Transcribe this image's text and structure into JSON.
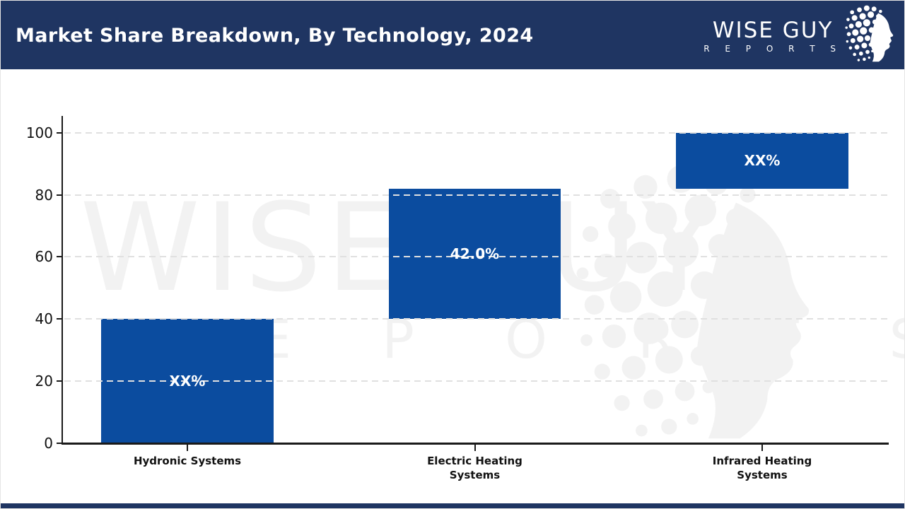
{
  "header": {
    "title": "Market Share Breakdown, By Technology, 2024",
    "logo": {
      "line1": "WISE GUY",
      "line2": "R E P O R T S"
    }
  },
  "watermark": {
    "line1": "WISE GUY",
    "line2": "R E P O R T S"
  },
  "colors": {
    "header_bg": "#1f3562",
    "footer_bg": "#1f3562",
    "bar_fill": "#0b4c9f",
    "bar_label_text": "#ffffff",
    "grid_line": "#e0e0e0",
    "axis_line": "#1a1a1a",
    "tick_text": "#111111",
    "watermark": "#f2f2f2"
  },
  "chart_data": {
    "type": "bar",
    "subtype": "waterfall",
    "title": "Market Share Breakdown, By Technology, 2024",
    "categories": [
      "Hydronic Systems",
      "Electric Heating\nSystems",
      "Infrared Heating\nSystems"
    ],
    "series": [
      {
        "name": "Market share (%)",
        "segments": [
          {
            "category": "Hydronic Systems",
            "start": 0,
            "end": 40,
            "value_label": "XX%"
          },
          {
            "category": "Electric Heating Systems",
            "start": 40,
            "end": 82,
            "value_label": "42.0%"
          },
          {
            "category": "Infrared Heating Systems",
            "start": 82,
            "end": 100,
            "value_label": "XX%"
          }
        ]
      }
    ],
    "xlabel": "",
    "ylabel": "",
    "ylim": [
      0,
      100
    ],
    "yticks": [
      0,
      20,
      40,
      60,
      80,
      100
    ],
    "grid": "horizontal dashed, drawn over bars",
    "legend": "none"
  }
}
